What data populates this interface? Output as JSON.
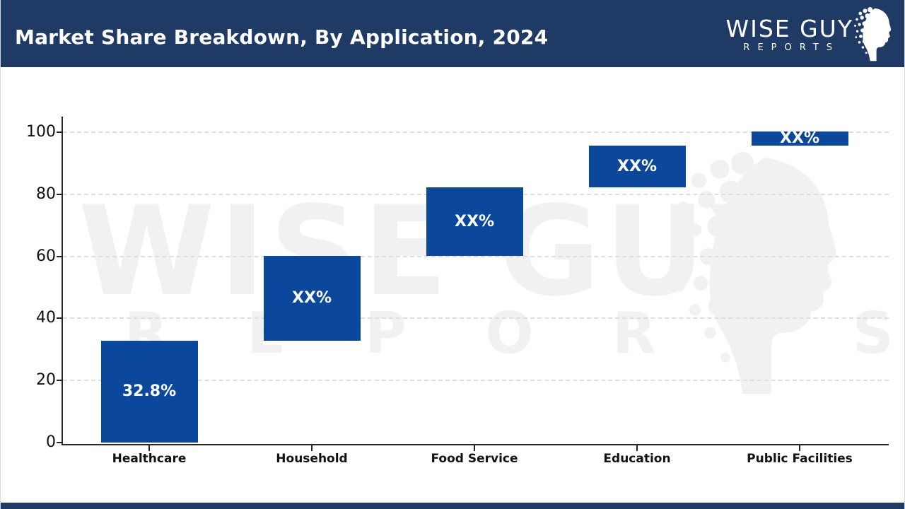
{
  "header": {
    "title": "Market Share Breakdown, By Application, 2024",
    "bg_color": "#203A66",
    "logo": {
      "line1": "WISE GUY",
      "line2": "REPORTS"
    }
  },
  "watermark": {
    "line1": "WISE GUY",
    "line2": "REPORTS"
  },
  "chart_data": {
    "type": "bar",
    "subtype": "waterfall",
    "title": "Market Share Breakdown, By Application, 2024",
    "categories": [
      "Healthcare",
      "Household",
      "Food Service",
      "Education",
      "Public Facilities"
    ],
    "bars": [
      {
        "category": "Healthcare",
        "start": 0,
        "end": 32.8,
        "value_label": "32.8%"
      },
      {
        "category": "Household",
        "start": 32.8,
        "end": 60.2,
        "value_label": "XX%"
      },
      {
        "category": "Food Service",
        "start": 60.2,
        "end": 82.2,
        "value_label": "XX%"
      },
      {
        "category": "Education",
        "start": 82.2,
        "end": 95.6,
        "value_label": "XX%"
      },
      {
        "category": "Public Facilities",
        "start": 95.6,
        "end": 100.3,
        "value_label": "XX%"
      }
    ],
    "y_ticks": [
      0,
      20,
      40,
      60,
      80,
      100
    ],
    "ylim": [
      0,
      105
    ],
    "xlabel": "",
    "ylabel": "",
    "bar_color": "#0b489c",
    "value_label_color": "#ffffff",
    "grid": "horizontal-dashed",
    "legend": "none"
  },
  "footer": {
    "bar_color": "#203A66"
  }
}
